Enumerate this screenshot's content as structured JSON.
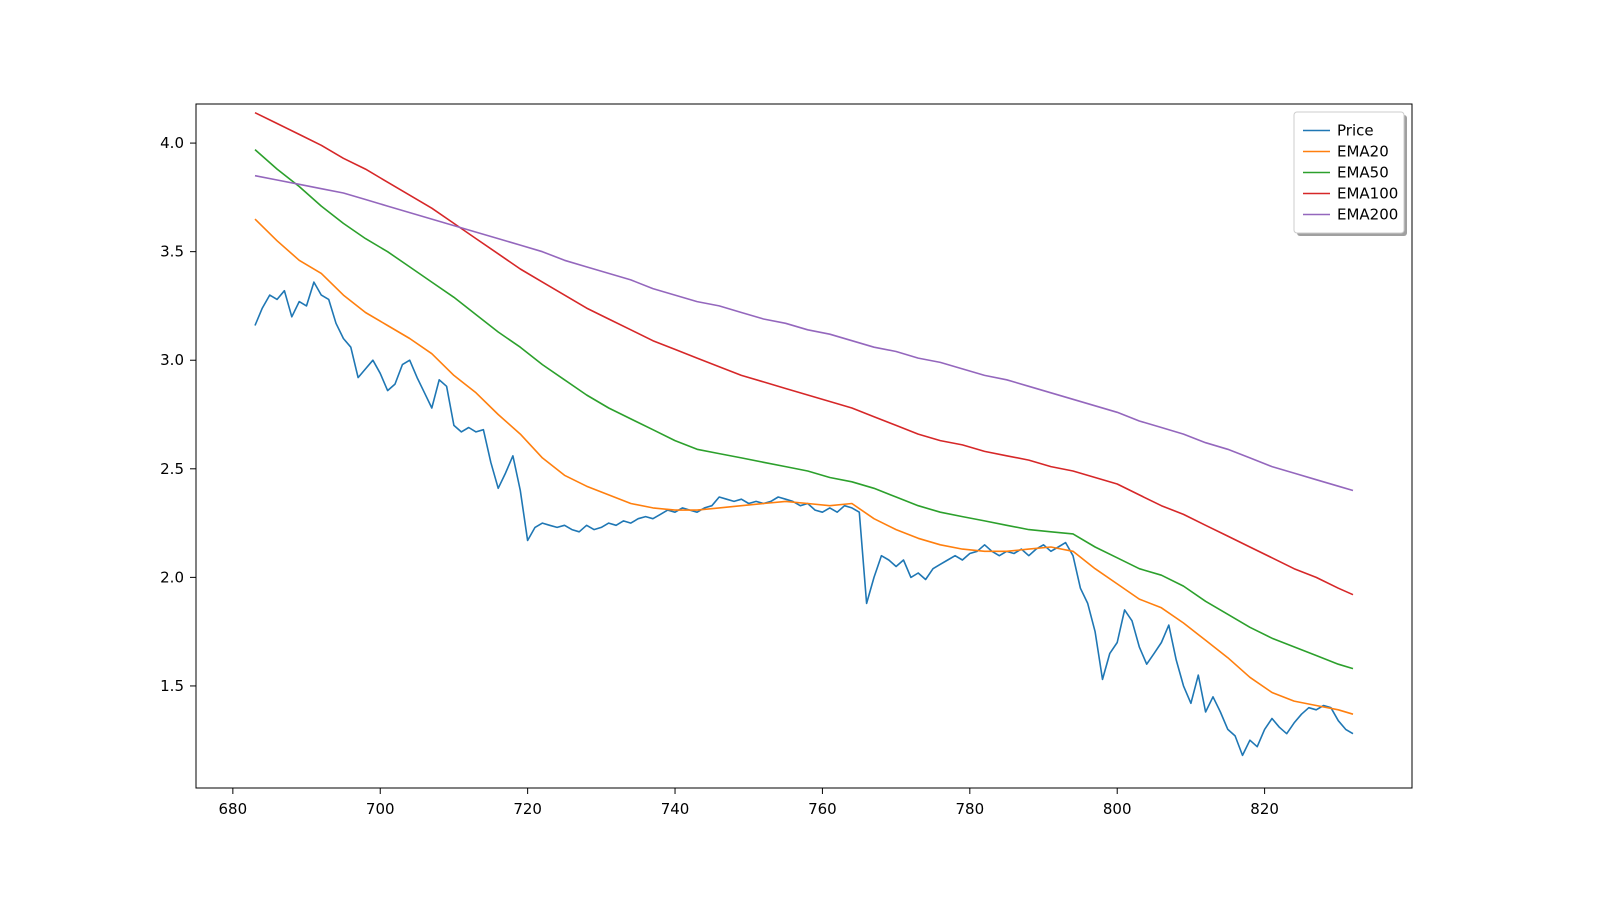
{
  "figure": {
    "background": "#ffffff"
  },
  "chart_data": {
    "type": "line",
    "title": "",
    "xlabel": "",
    "ylabel": "",
    "xlim": [
      675,
      840
    ],
    "ylim": [
      1.03,
      4.18
    ],
    "xticks": [
      680,
      700,
      720,
      740,
      760,
      780,
      800,
      820
    ],
    "yticks": [
      1.5,
      2.0,
      2.5,
      3.0,
      3.5,
      4.0
    ],
    "grid": false,
    "legend": {
      "position": "upper right",
      "shadow": true,
      "edge_color": "#cccccc",
      "shadow_color": "#a0a0a0"
    },
    "series": [
      {
        "name": "Price",
        "color": "#1f77b4",
        "x": [
          683,
          684,
          685,
          686,
          687,
          688,
          689,
          690,
          691,
          692,
          693,
          694,
          695,
          696,
          697,
          698,
          699,
          700,
          701,
          702,
          703,
          704,
          705,
          706,
          707,
          708,
          709,
          710,
          711,
          712,
          713,
          714,
          715,
          716,
          717,
          718,
          719,
          720,
          721,
          722,
          723,
          724,
          725,
          726,
          727,
          728,
          729,
          730,
          731,
          732,
          733,
          734,
          735,
          736,
          737,
          738,
          739,
          740,
          741,
          742,
          743,
          744,
          745,
          746,
          747,
          748,
          749,
          750,
          751,
          752,
          753,
          754,
          755,
          756,
          757,
          758,
          759,
          760,
          761,
          762,
          763,
          764,
          765,
          766,
          767,
          768,
          769,
          770,
          771,
          772,
          773,
          774,
          775,
          776,
          777,
          778,
          779,
          780,
          781,
          782,
          783,
          784,
          785,
          786,
          787,
          788,
          789,
          790,
          791,
          792,
          793,
          794,
          795,
          796,
          797,
          798,
          799,
          800,
          801,
          802,
          803,
          804,
          805,
          806,
          807,
          808,
          809,
          810,
          811,
          812,
          813,
          814,
          815,
          816,
          817,
          818,
          819,
          820,
          821,
          822,
          823,
          824,
          825,
          826,
          827,
          828,
          829,
          830,
          831,
          832
        ],
        "values": [
          3.16,
          3.24,
          3.3,
          3.28,
          3.32,
          3.2,
          3.27,
          3.25,
          3.36,
          3.3,
          3.28,
          3.17,
          3.1,
          3.06,
          2.92,
          2.96,
          3.0,
          2.94,
          2.86,
          2.89,
          2.98,
          3.0,
          2.92,
          2.85,
          2.78,
          2.91,
          2.88,
          2.7,
          2.67,
          2.69,
          2.67,
          2.68,
          2.53,
          2.41,
          2.48,
          2.56,
          2.4,
          2.17,
          2.23,
          2.25,
          2.24,
          2.23,
          2.24,
          2.22,
          2.21,
          2.24,
          2.22,
          2.23,
          2.25,
          2.24,
          2.26,
          2.25,
          2.27,
          2.28,
          2.27,
          2.29,
          2.31,
          2.3,
          2.32,
          2.31,
          2.3,
          2.32,
          2.33,
          2.37,
          2.36,
          2.35,
          2.36,
          2.34,
          2.35,
          2.34,
          2.35,
          2.37,
          2.36,
          2.35,
          2.33,
          2.34,
          2.31,
          2.3,
          2.32,
          2.3,
          2.33,
          2.32,
          2.3,
          1.88,
          2.0,
          2.1,
          2.08,
          2.05,
          2.08,
          2.0,
          2.02,
          1.99,
          2.04,
          2.06,
          2.08,
          2.1,
          2.08,
          2.11,
          2.12,
          2.15,
          2.12,
          2.1,
          2.12,
          2.11,
          2.13,
          2.1,
          2.13,
          2.15,
          2.12,
          2.14,
          2.16,
          2.1,
          1.95,
          1.88,
          1.75,
          1.53,
          1.65,
          1.7,
          1.85,
          1.8,
          1.68,
          1.6,
          1.65,
          1.7,
          1.78,
          1.62,
          1.5,
          1.42,
          1.55,
          1.38,
          1.45,
          1.38,
          1.3,
          1.27,
          1.18,
          1.25,
          1.22,
          1.3,
          1.35,
          1.31,
          1.28,
          1.33,
          1.37,
          1.4,
          1.39,
          1.41,
          1.4,
          1.34,
          1.3,
          1.28
        ]
      },
      {
        "name": "EMA20",
        "color": "#ff7f0e",
        "x": [
          683,
          686,
          689,
          692,
          695,
          698,
          701,
          704,
          707,
          710,
          713,
          716,
          719,
          722,
          725,
          728,
          731,
          734,
          737,
          740,
          743,
          746,
          749,
          752,
          755,
          758,
          761,
          764,
          767,
          770,
          773,
          776,
          779,
          782,
          785,
          788,
          791,
          794,
          797,
          800,
          803,
          806,
          809,
          812,
          815,
          818,
          821,
          824,
          827,
          830,
          832
        ],
        "values": [
          3.65,
          3.55,
          3.46,
          3.4,
          3.3,
          3.22,
          3.16,
          3.1,
          3.03,
          2.93,
          2.85,
          2.75,
          2.66,
          2.55,
          2.47,
          2.42,
          2.38,
          2.34,
          2.32,
          2.31,
          2.31,
          2.32,
          2.33,
          2.34,
          2.35,
          2.34,
          2.33,
          2.34,
          2.27,
          2.22,
          2.18,
          2.15,
          2.13,
          2.12,
          2.12,
          2.13,
          2.14,
          2.12,
          2.04,
          1.97,
          1.9,
          1.86,
          1.79,
          1.71,
          1.63,
          1.54,
          1.47,
          1.43,
          1.41,
          1.39,
          1.37
        ]
      },
      {
        "name": "EMA50",
        "color": "#2ca02c",
        "x": [
          683,
          686,
          689,
          692,
          695,
          698,
          701,
          704,
          707,
          710,
          713,
          716,
          719,
          722,
          725,
          728,
          731,
          734,
          737,
          740,
          743,
          746,
          749,
          752,
          755,
          758,
          761,
          764,
          767,
          770,
          773,
          776,
          779,
          782,
          785,
          788,
          791,
          794,
          797,
          800,
          803,
          806,
          809,
          812,
          815,
          818,
          821,
          824,
          827,
          830,
          832
        ],
        "values": [
          3.97,
          3.88,
          3.8,
          3.71,
          3.63,
          3.56,
          3.5,
          3.43,
          3.36,
          3.29,
          3.21,
          3.13,
          3.06,
          2.98,
          2.91,
          2.84,
          2.78,
          2.73,
          2.68,
          2.63,
          2.59,
          2.57,
          2.55,
          2.53,
          2.51,
          2.49,
          2.46,
          2.44,
          2.41,
          2.37,
          2.33,
          2.3,
          2.28,
          2.26,
          2.24,
          2.22,
          2.21,
          2.2,
          2.14,
          2.09,
          2.04,
          2.01,
          1.96,
          1.89,
          1.83,
          1.77,
          1.72,
          1.68,
          1.64,
          1.6,
          1.58
        ]
      },
      {
        "name": "EMA100",
        "color": "#d62728",
        "x": [
          683,
          686,
          689,
          692,
          695,
          698,
          701,
          704,
          707,
          710,
          713,
          716,
          719,
          722,
          725,
          728,
          731,
          734,
          737,
          740,
          743,
          746,
          749,
          752,
          755,
          758,
          761,
          764,
          767,
          770,
          773,
          776,
          779,
          782,
          785,
          788,
          791,
          794,
          797,
          800,
          803,
          806,
          809,
          812,
          815,
          818,
          821,
          824,
          827,
          830,
          832
        ],
        "values": [
          4.14,
          4.09,
          4.04,
          3.99,
          3.93,
          3.88,
          3.82,
          3.76,
          3.7,
          3.63,
          3.56,
          3.49,
          3.42,
          3.36,
          3.3,
          3.24,
          3.19,
          3.14,
          3.09,
          3.05,
          3.01,
          2.97,
          2.93,
          2.9,
          2.87,
          2.84,
          2.81,
          2.78,
          2.74,
          2.7,
          2.66,
          2.63,
          2.61,
          2.58,
          2.56,
          2.54,
          2.51,
          2.49,
          2.46,
          2.43,
          2.38,
          2.33,
          2.29,
          2.24,
          2.19,
          2.14,
          2.09,
          2.04,
          2.0,
          1.95,
          1.92
        ]
      },
      {
        "name": "EMA200",
        "color": "#9467bd",
        "x": [
          683,
          686,
          689,
          692,
          695,
          698,
          701,
          704,
          707,
          710,
          713,
          716,
          719,
          722,
          725,
          728,
          731,
          734,
          737,
          740,
          743,
          746,
          749,
          752,
          755,
          758,
          761,
          764,
          767,
          770,
          773,
          776,
          779,
          782,
          785,
          788,
          791,
          794,
          797,
          800,
          803,
          806,
          809,
          812,
          815,
          818,
          821,
          824,
          827,
          830,
          832
        ],
        "values": [
          3.85,
          3.83,
          3.81,
          3.79,
          3.77,
          3.74,
          3.71,
          3.68,
          3.65,
          3.62,
          3.59,
          3.56,
          3.53,
          3.5,
          3.46,
          3.43,
          3.4,
          3.37,
          3.33,
          3.3,
          3.27,
          3.25,
          3.22,
          3.19,
          3.17,
          3.14,
          3.12,
          3.09,
          3.06,
          3.04,
          3.01,
          2.99,
          2.96,
          2.93,
          2.91,
          2.88,
          2.85,
          2.82,
          2.79,
          2.76,
          2.72,
          2.69,
          2.66,
          2.62,
          2.59,
          2.55,
          2.51,
          2.48,
          2.45,
          2.42,
          2.4
        ]
      }
    ]
  }
}
